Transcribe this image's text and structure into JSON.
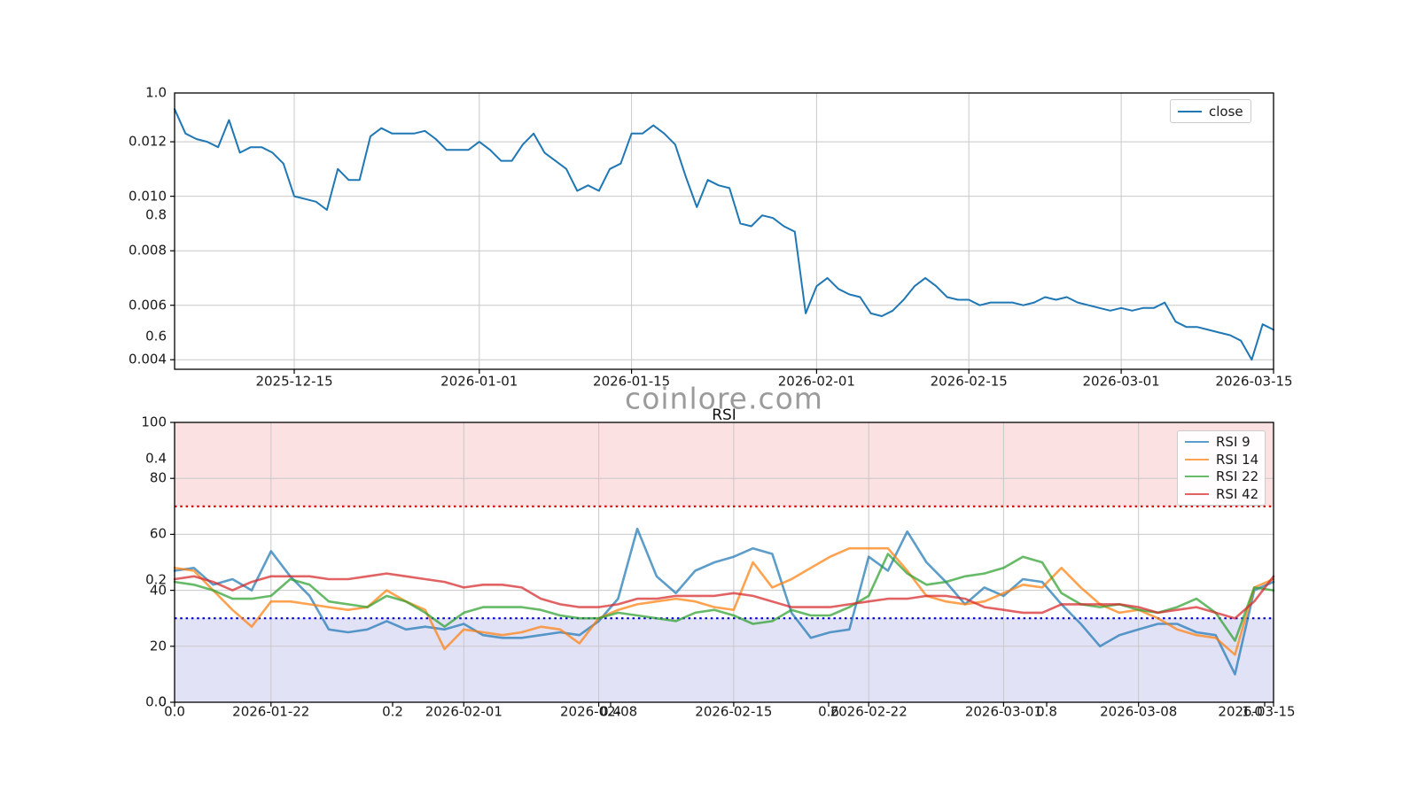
{
  "watermark": "coinlore.com",
  "colors": {
    "grid": "#c8c8c8",
    "spine": "#000000",
    "tick_text": "#1a1a1a",
    "watermark": "#9b9b9b",
    "overbought_band": "#fbe1e1",
    "oversold_band": "#e2e2f6",
    "overbought_line": "#d40000",
    "oversold_line": "#0000cf",
    "close_line": "#1f77b4"
  },
  "overlay_axis": {
    "x_labels": [
      "0.0",
      "0.2",
      "0.4",
      "0.6",
      "0.8",
      "1.0"
    ],
    "y_labels": [
      "0.0",
      "0.2",
      "0.4",
      "0.6",
      "0.8",
      "1.0"
    ]
  },
  "chart_data": [
    {
      "type": "line",
      "name": "price",
      "title": "",
      "ylim": [
        0.00365,
        0.01379
      ],
      "grid": true,
      "legend_position": "upper right",
      "yticks": [
        {
          "v": 0.004,
          "label": "0.004"
        },
        {
          "v": 0.006,
          "label": "0.006"
        },
        {
          "v": 0.008,
          "label": "0.008"
        },
        {
          "v": 0.01,
          "label": "0.010"
        },
        {
          "v": 0.012,
          "label": "0.012"
        }
      ],
      "xticks": [
        {
          "label": "2025-12-15",
          "i": 11
        },
        {
          "label": "2026-01-01",
          "i": 28
        },
        {
          "label": "2026-01-15",
          "i": 42
        },
        {
          "label": "2026-02-01",
          "i": 59
        },
        {
          "label": "2026-02-15",
          "i": 73
        },
        {
          "label": "2026-03-01",
          "i": 87
        },
        {
          "label": "2026-03-15",
          "i": 101
        }
      ],
      "dates": [
        "2025-12-04",
        "2025-12-05",
        "2025-12-06",
        "2025-12-07",
        "2025-12-08",
        "2025-12-09",
        "2025-12-10",
        "2025-12-11",
        "2025-12-12",
        "2025-12-13",
        "2025-12-14",
        "2025-12-15",
        "2025-12-16",
        "2025-12-17",
        "2025-12-18",
        "2025-12-19",
        "2025-12-20",
        "2025-12-21",
        "2025-12-22",
        "2025-12-23",
        "2025-12-24",
        "2025-12-25",
        "2025-12-26",
        "2025-12-27",
        "2025-12-28",
        "2025-12-29",
        "2025-12-30",
        "2025-12-31",
        "2026-01-01",
        "2026-01-02",
        "2026-01-03",
        "2026-01-04",
        "2026-01-05",
        "2026-01-06",
        "2026-01-07",
        "2026-01-08",
        "2026-01-09",
        "2026-01-10",
        "2026-01-11",
        "2026-01-12",
        "2026-01-13",
        "2026-01-14",
        "2026-01-15",
        "2026-01-16",
        "2026-01-17",
        "2026-01-18",
        "2026-01-19",
        "2026-01-20",
        "2026-01-21",
        "2026-01-22",
        "2026-01-23",
        "2026-01-24",
        "2026-01-25",
        "2026-01-26",
        "2026-01-27",
        "2026-01-28",
        "2026-01-29",
        "2026-01-30",
        "2026-01-31",
        "2026-02-01",
        "2026-02-02",
        "2026-02-03",
        "2026-02-04",
        "2026-02-05",
        "2026-02-06",
        "2026-02-07",
        "2026-02-08",
        "2026-02-09",
        "2026-02-10",
        "2026-02-11",
        "2026-02-12",
        "2026-02-13",
        "2026-02-14",
        "2026-02-15",
        "2026-02-16",
        "2026-02-17",
        "2026-02-18",
        "2026-02-19",
        "2026-02-20",
        "2026-02-21",
        "2026-02-22",
        "2026-02-23",
        "2026-02-24",
        "2026-02-25",
        "2026-02-26",
        "2026-02-27",
        "2026-02-28",
        "2026-03-01",
        "2026-03-02",
        "2026-03-03",
        "2026-03-04",
        "2026-03-05",
        "2026-03-06",
        "2026-03-07",
        "2026-03-08",
        "2026-03-09",
        "2026-03-10",
        "2026-03-11",
        "2026-03-12",
        "2026-03-13",
        "2026-03-14",
        "2026-03-15"
      ],
      "series": [
        {
          "name": "close",
          "color": "#1f77b4",
          "opacity": 1,
          "width": 2,
          "values": [
            0.0132,
            0.0123,
            0.0121,
            0.012,
            0.0118,
            0.0128,
            0.0116,
            0.0118,
            0.0118,
            0.0116,
            0.0112,
            0.01,
            0.0099,
            0.0098,
            0.0095,
            0.011,
            0.0106,
            0.0106,
            0.0122,
            0.0125,
            0.0123,
            0.0123,
            0.0123,
            0.0124,
            0.0121,
            0.0117,
            0.0117,
            0.0117,
            0.012,
            0.0117,
            0.0113,
            0.0113,
            0.0119,
            0.0123,
            0.0116,
            0.0113,
            0.011,
            0.0102,
            0.0104,
            0.0102,
            0.011,
            0.0112,
            0.0123,
            0.0123,
            0.0126,
            0.0123,
            0.0119,
            0.0107,
            0.0096,
            0.0106,
            0.0104,
            0.0103,
            0.009,
            0.0089,
            0.0093,
            0.0092,
            0.0089,
            0.0087,
            0.0057,
            0.0067,
            0.007,
            0.0066,
            0.0064,
            0.0063,
            0.0057,
            0.0056,
            0.0058,
            0.0062,
            0.0067,
            0.007,
            0.0067,
            0.0063,
            0.0062,
            0.0062,
            0.006,
            0.0061,
            0.0061,
            0.0061,
            0.006,
            0.0061,
            0.0063,
            0.0062,
            0.0063,
            0.0061,
            0.006,
            0.0059,
            0.0058,
            0.0059,
            0.0058,
            0.0059,
            0.0059,
            0.0061,
            0.0054,
            0.0052,
            0.0052,
            0.0051,
            0.005,
            0.0049,
            0.0047,
            0.004,
            0.0053,
            0.0051
          ]
        }
      ]
    },
    {
      "type": "line",
      "name": "rsi",
      "title": "RSI",
      "ylim": [
        0,
        100
      ],
      "grid": true,
      "legend_position": "upper right",
      "bands": [
        {
          "from": 70,
          "to": 100,
          "color": "#fbe1e1",
          "meaning": "overbought"
        },
        {
          "from": 0,
          "to": 30,
          "color": "#e2e2f6",
          "meaning": "oversold"
        }
      ],
      "hlines": [
        {
          "y": 70,
          "color": "#d40000",
          "style": "dotted"
        },
        {
          "y": 30,
          "color": "#0000cf",
          "style": "dotted"
        }
      ],
      "yticks": [
        {
          "v": 0,
          "label": "0"
        },
        {
          "v": 20,
          "label": "20"
        },
        {
          "v": 40,
          "label": "40"
        },
        {
          "v": 60,
          "label": "60"
        },
        {
          "v": 80,
          "label": "80"
        },
        {
          "v": 100,
          "label": "100"
        }
      ],
      "xticks": [
        {
          "label": "2026-01-22",
          "i": 5
        },
        {
          "label": "2026-02-01",
          "i": 15
        },
        {
          "label": "2026-02-08",
          "i": 22
        },
        {
          "label": "2026-02-15",
          "i": 29
        },
        {
          "label": "2026-02-22",
          "i": 36
        },
        {
          "label": "2026-03-01",
          "i": 43
        },
        {
          "label": "2026-03-08",
          "i": 50
        },
        {
          "label": "2026-03-15",
          "i": 57
        }
      ],
      "dates": [
        "2026-01-17",
        "2026-01-18",
        "2026-01-19",
        "2026-01-20",
        "2026-01-21",
        "2026-01-22",
        "2026-01-23",
        "2026-01-24",
        "2026-01-25",
        "2026-01-26",
        "2026-01-27",
        "2026-01-28",
        "2026-01-29",
        "2026-01-30",
        "2026-01-31",
        "2026-02-01",
        "2026-02-02",
        "2026-02-03",
        "2026-02-04",
        "2026-02-05",
        "2026-02-06",
        "2026-02-07",
        "2026-02-08",
        "2026-02-09",
        "2026-02-10",
        "2026-02-11",
        "2026-02-12",
        "2026-02-13",
        "2026-02-14",
        "2026-02-15",
        "2026-02-16",
        "2026-02-17",
        "2026-02-18",
        "2026-02-19",
        "2026-02-20",
        "2026-02-21",
        "2026-02-22",
        "2026-02-23",
        "2026-02-24",
        "2026-02-25",
        "2026-02-26",
        "2026-02-27",
        "2026-02-28",
        "2026-03-01",
        "2026-03-02",
        "2026-03-03",
        "2026-03-04",
        "2026-03-05",
        "2026-03-06",
        "2026-03-07",
        "2026-03-08",
        "2026-03-09",
        "2026-03-10",
        "2026-03-11",
        "2026-03-12",
        "2026-03-13",
        "2026-03-14",
        "2026-03-15"
      ],
      "series": [
        {
          "name": "RSI 9",
          "color": "#1f77b4",
          "opacity": 0.72,
          "width": 2.6,
          "values": [
            47,
            48,
            42,
            44,
            40,
            54,
            45,
            38,
            26,
            25,
            26,
            29,
            26,
            27,
            26,
            28,
            24,
            23,
            23,
            24,
            25,
            24,
            29,
            37,
            62,
            45,
            39,
            47,
            50,
            52,
            55,
            53,
            32,
            23,
            25,
            26,
            52,
            47,
            61,
            50,
            43,
            35,
            41,
            38,
            44,
            43,
            35,
            28,
            20,
            24,
            26,
            28,
            28,
            25,
            24,
            10,
            40,
            43
          ]
        },
        {
          "name": "RSI 14",
          "color": "#ff7f0e",
          "opacity": 0.72,
          "width": 2.6,
          "values": [
            48,
            47,
            40,
            33,
            27,
            36,
            36,
            35,
            34,
            33,
            34,
            40,
            36,
            33,
            19,
            26,
            25,
            24,
            25,
            27,
            26,
            21,
            30,
            33,
            35,
            36,
            37,
            36,
            34,
            33,
            50,
            41,
            44,
            48,
            52,
            55,
            55,
            55,
            47,
            38,
            36,
            35,
            36,
            39,
            42,
            41,
            48,
            41,
            35,
            32,
            33,
            30,
            26,
            24,
            23,
            17,
            41,
            44
          ]
        },
        {
          "name": "RSI 22",
          "color": "#2ca02c",
          "opacity": 0.72,
          "width": 2.6,
          "values": [
            43,
            42,
            40,
            37,
            37,
            38,
            44,
            42,
            36,
            35,
            34,
            38,
            36,
            32,
            27,
            32,
            34,
            34,
            34,
            33,
            31,
            30,
            30,
            32,
            31,
            30,
            29,
            32,
            33,
            31,
            28,
            29,
            33,
            31,
            31,
            34,
            38,
            53,
            46,
            42,
            43,
            45,
            46,
            48,
            52,
            50,
            39,
            35,
            34,
            35,
            33,
            32,
            34,
            37,
            32,
            22,
            41,
            40
          ]
        },
        {
          "name": "RSI 42",
          "color": "#d62728",
          "opacity": 0.72,
          "width": 2.6,
          "values": [
            44,
            45,
            43,
            40,
            43,
            45,
            45,
            45,
            44,
            44,
            45,
            46,
            45,
            44,
            43,
            41,
            42,
            42,
            41,
            37,
            35,
            34,
            34,
            35,
            37,
            37,
            38,
            38,
            38,
            39,
            38,
            36,
            34,
            34,
            34,
            35,
            36,
            37,
            37,
            38,
            38,
            37,
            34,
            33,
            32,
            32,
            35,
            35,
            35,
            35,
            34,
            32,
            33,
            34,
            32,
            30,
            36,
            45
          ]
        }
      ]
    }
  ]
}
